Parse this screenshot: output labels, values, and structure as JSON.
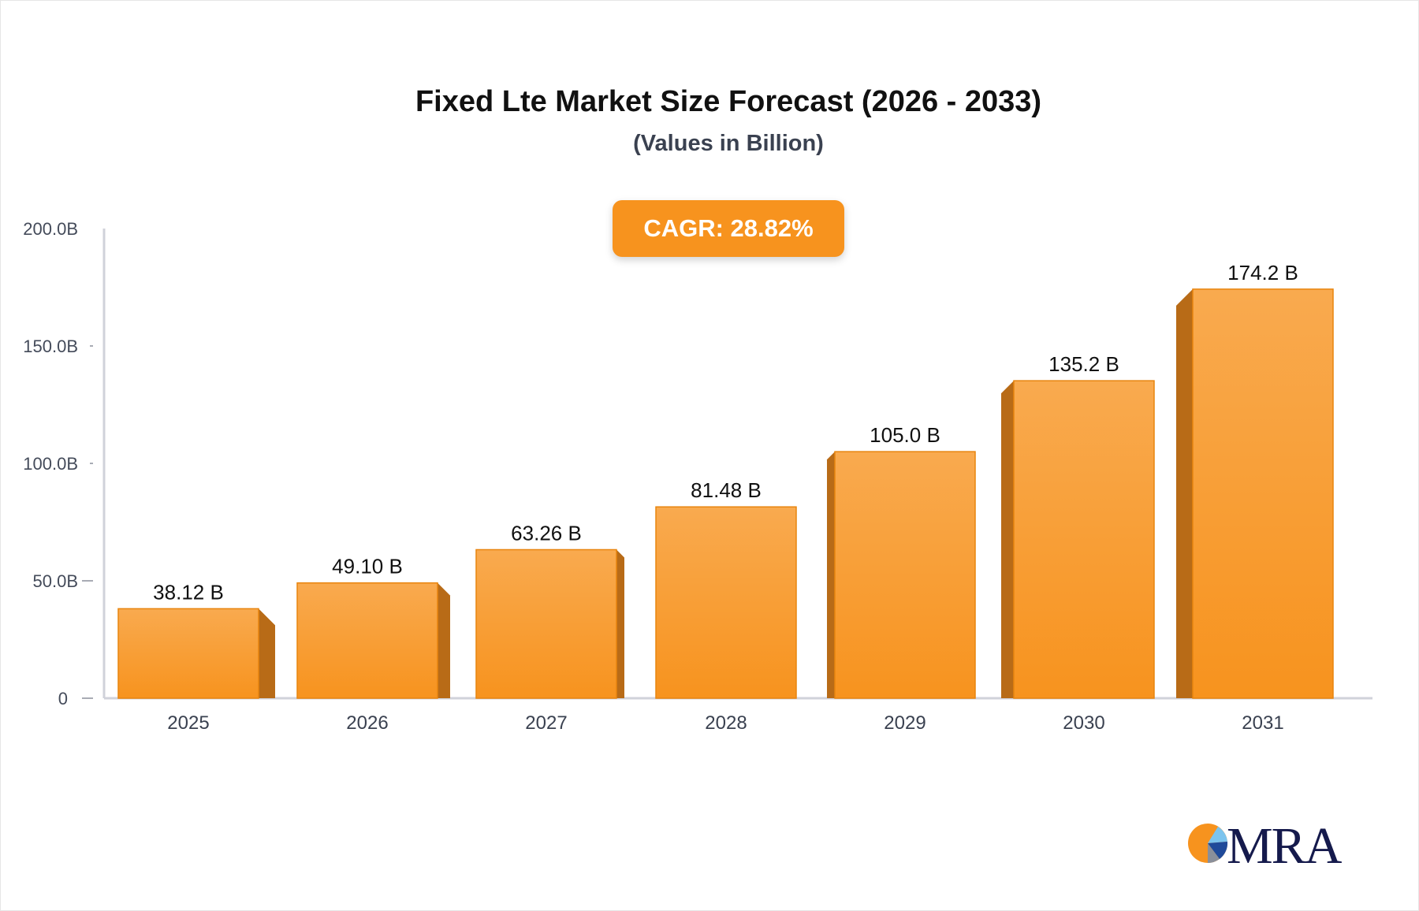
{
  "chart_data": {
    "type": "bar",
    "title": "Fixed Lte Market Size Forecast (2026 - 2033)",
    "subtitle": "(Values in Billion)",
    "annotation": "CAGR: 28.82%",
    "categories": [
      "2025",
      "2026",
      "2027",
      "2028",
      "2029",
      "2030",
      "2031"
    ],
    "values": [
      38.12,
      49.1,
      63.26,
      81.48,
      105.0,
      135.2,
      174.2
    ],
    "data_labels": [
      "38.12 B",
      "49.10 B",
      "63.26 B",
      "81.48 B",
      "105.0 B",
      "135.2 B",
      "174.2 B"
    ],
    "ylim": [
      0,
      200
    ],
    "yticks": [
      0,
      50,
      100,
      150,
      200
    ],
    "ytick_labels": [
      "0",
      "50.0B",
      "100.0B",
      "150.0B",
      "200.0B"
    ],
    "xlabel": "",
    "ylabel": "",
    "grid": false,
    "colors": {
      "bar": "#f7931e",
      "bar_light": "#f9aa4f",
      "bar_side": "#b86b17",
      "axis": "#d0d2da"
    }
  },
  "logo": {
    "text": "MRA"
  }
}
